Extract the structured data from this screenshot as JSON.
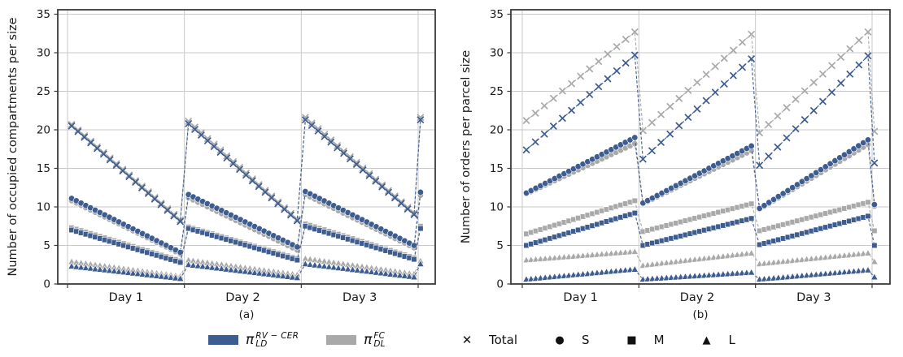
{
  "page": {
    "background": "#ffffff"
  },
  "colors": {
    "policy_blue": "#3d5c8f",
    "policy_gray": "#a9a9a9",
    "grid": "#c9c9c9",
    "spine": "#3a3a3a",
    "text": "#1a1a1a"
  },
  "legend": {
    "policies": [
      {
        "symbol": "π",
        "sup": "RV − CER",
        "sub": "LD",
        "color": "#3d5c8f"
      },
      {
        "symbol": "π",
        "sup": "FC",
        "sub": "DL",
        "color": "#a9a9a9"
      }
    ],
    "markers": [
      {
        "glyph": "✕",
        "label": "Total"
      },
      {
        "glyph": "●",
        "label": "S"
      },
      {
        "glyph": "■",
        "label": "M"
      },
      {
        "glyph": "▲",
        "label": "L"
      }
    ]
  },
  "chart_data": [
    {
      "type": "line",
      "panel_label": "(a)",
      "ylabel": "Number of occupied compartments per size",
      "xticklabels": [
        "Day 1",
        "Day 2",
        "Day 3"
      ],
      "yticks": [
        0,
        5,
        10,
        15,
        20,
        25,
        30,
        35
      ],
      "ylim": [
        0,
        35.6
      ],
      "days": 3,
      "grid": true,
      "legend_position": "below-figure",
      "pattern": "sawtooth: linear decline within each day, vertical jump up at each day boundary, one start-of-next-day point after Day 3",
      "series": [
        {
          "name": "pi-DL-FC Total",
          "policy": "π_DL^FC",
          "sizeclass": "Total",
          "color": "#a9a9a9",
          "marker": "x",
          "points_per_day": 18,
          "day_start": [
            20.7,
            21.1,
            21.6
          ],
          "day_end": [
            8.3,
            8.4,
            9.2
          ],
          "next_day_open": 21.6
        },
        {
          "name": "pi-LD-RV-CER Total",
          "policy": "π_LD^RV−CER",
          "sizeclass": "Total",
          "color": "#3d5c8f",
          "marker": "x",
          "points_per_day": 18,
          "day_start": [
            20.5,
            20.8,
            21.3
          ],
          "day_end": [
            8.1,
            8.2,
            9.0
          ],
          "next_day_open": 21.3
        },
        {
          "name": "pi-DL-FC S",
          "policy": "π_DL^FC",
          "sizeclass": "S",
          "color": "#a9a9a9",
          "marker": "circle",
          "points_per_day": 24,
          "day_start": [
            10.8,
            11.2,
            11.6
          ],
          "day_end": [
            3.9,
            4.4,
            4.7
          ],
          "next_day_open": 11.5
        },
        {
          "name": "pi-LD-RV-CER S",
          "policy": "π_LD^RV−CER",
          "sizeclass": "S",
          "color": "#3d5c8f",
          "marker": "circle",
          "points_per_day": 24,
          "day_start": [
            11.1,
            11.6,
            12.0
          ],
          "day_end": [
            4.1,
            4.8,
            5.0
          ],
          "next_day_open": 11.9
        },
        {
          "name": "pi-DL-FC M",
          "policy": "π_DL^FC",
          "sizeclass": "M",
          "color": "#a9a9a9",
          "marker": "square",
          "points_per_day": 24,
          "day_start": [
            7.3,
            7.4,
            7.8
          ],
          "day_end": [
            3.0,
            3.3,
            3.4
          ],
          "next_day_open": 7.5
        },
        {
          "name": "pi-LD-RV-CER M",
          "policy": "π_LD^RV−CER",
          "sizeclass": "M",
          "color": "#3d5c8f",
          "marker": "square",
          "points_per_day": 24,
          "day_start": [
            7.0,
            7.2,
            7.5
          ],
          "day_end": [
            2.8,
            3.1,
            3.2
          ],
          "next_day_open": 7.2
        },
        {
          "name": "pi-DL-FC L",
          "policy": "π_DL^FC",
          "sizeclass": "L",
          "color": "#a9a9a9",
          "marker": "triangle",
          "points_per_day": 24,
          "day_start": [
            2.9,
            3.1,
            3.3
          ],
          "day_end": [
            1.0,
            1.2,
            1.3
          ],
          "next_day_open": 3.0
        },
        {
          "name": "pi-LD-RV-CER L",
          "policy": "π_LD^RV−CER",
          "sizeclass": "L",
          "color": "#3d5c8f",
          "marker": "triangle",
          "points_per_day": 24,
          "day_start": [
            2.3,
            2.5,
            2.6
          ],
          "day_end": [
            0.7,
            0.8,
            0.9
          ],
          "next_day_open": 2.6
        }
      ]
    },
    {
      "type": "line",
      "panel_label": "(b)",
      "ylabel": "Number of orders per parcel size",
      "xticklabels": [
        "Day 1",
        "Day 2",
        "Day 3"
      ],
      "yticks": [
        0,
        5,
        10,
        15,
        20,
        25,
        30,
        35
      ],
      "ylim": [
        0,
        35.6
      ],
      "days": 3,
      "grid": true,
      "legend_position": "below-figure",
      "pattern": "sawtooth: linear rise within each day, vertical drop at each day boundary, one start-of-next-day point after Day 3",
      "series": [
        {
          "name": "pi-DL-FC Total",
          "policy": "π_DL^FC",
          "sizeclass": "Total",
          "color": "#a9a9a9",
          "marker": "x",
          "points_per_day": 13,
          "day_start": [
            21.2,
            19.9,
            19.6
          ],
          "day_end": [
            32.7,
            32.4,
            32.7
          ],
          "next_day_open": 19.8
        },
        {
          "name": "pi-LD-RV-CER Total",
          "policy": "π_LD^RV−CER",
          "sizeclass": "Total",
          "color": "#3d5c8f",
          "marker": "x",
          "points_per_day": 13,
          "day_start": [
            17.4,
            16.2,
            15.4
          ],
          "day_end": [
            29.7,
            29.2,
            29.6
          ],
          "next_day_open": 15.7
        },
        {
          "name": "pi-DL-FC S",
          "policy": "π_DL^FC",
          "sizeclass": "S",
          "color": "#a9a9a9",
          "marker": "circle",
          "points_per_day": 24,
          "day_start": [
            11.7,
            10.4,
            9.7
          ],
          "day_end": [
            18.2,
            17.3,
            18.1
          ],
          "next_day_open": 10.1
        },
        {
          "name": "pi-LD-RV-CER S",
          "policy": "π_LD^RV−CER",
          "sizeclass": "S",
          "color": "#3d5c8f",
          "marker": "circle",
          "points_per_day": 24,
          "day_start": [
            11.8,
            10.5,
            9.8
          ],
          "day_end": [
            19.0,
            17.9,
            18.7
          ],
          "next_day_open": 10.3
        },
        {
          "name": "pi-DL-FC M",
          "policy": "π_DL^FC",
          "sizeclass": "M",
          "color": "#a9a9a9",
          "marker": "square",
          "points_per_day": 24,
          "day_start": [
            6.5,
            6.8,
            6.9
          ],
          "day_end": [
            10.8,
            10.4,
            10.6
          ],
          "next_day_open": 6.9
        },
        {
          "name": "pi-LD-RV-CER M",
          "policy": "π_LD^RV−CER",
          "sizeclass": "M",
          "color": "#3d5c8f",
          "marker": "square",
          "points_per_day": 24,
          "day_start": [
            5.0,
            5.0,
            5.1
          ],
          "day_end": [
            9.2,
            8.5,
            8.8
          ],
          "next_day_open": 5.0
        },
        {
          "name": "pi-DL-FC L",
          "policy": "π_DL^FC",
          "sizeclass": "L",
          "color": "#a9a9a9",
          "marker": "triangle",
          "points_per_day": 24,
          "day_start": [
            3.1,
            2.4,
            2.6
          ],
          "day_end": [
            4.2,
            4.0,
            4.0
          ],
          "next_day_open": 2.9
        },
        {
          "name": "pi-LD-RV-CER L",
          "policy": "π_LD^RV−CER",
          "sizeclass": "L",
          "color": "#3d5c8f",
          "marker": "triangle",
          "points_per_day": 24,
          "day_start": [
            0.6,
            0.6,
            0.6
          ],
          "day_end": [
            1.9,
            1.5,
            1.8
          ],
          "next_day_open": 0.9
        }
      ]
    }
  ]
}
